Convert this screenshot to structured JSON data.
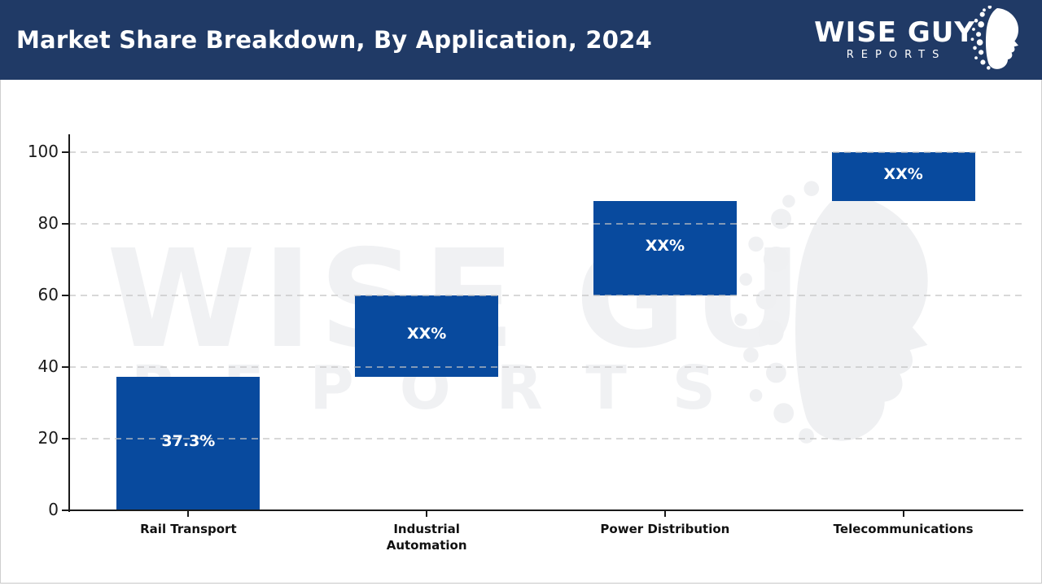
{
  "header": {
    "title": "Market Share Breakdown, By Application, 2024",
    "logo": {
      "line1": "WISE GUY",
      "line2": "REPORTS"
    }
  },
  "watermark": {
    "line1": "WISE GUY",
    "line2": "REPORTS"
  },
  "chart_data": {
    "type": "waterfall",
    "title": "Market Share Breakdown, By Application, 2024",
    "categories": [
      [
        "Rail Transport"
      ],
      [
        "Industrial",
        "Automation"
      ],
      [
        "Power Distribution"
      ],
      [
        "Telecommunications"
      ]
    ],
    "bars": [
      {
        "category": "Rail Transport",
        "start": 0,
        "end": 37.3,
        "value": 37.3,
        "label": "37.3%"
      },
      {
        "category": "Industrial Automation",
        "start": 37.3,
        "end": 60,
        "value": 22.7,
        "label": "XX%"
      },
      {
        "category": "Power Distribution",
        "start": 60,
        "end": 86.4,
        "value": 26.4,
        "label": "XX%"
      },
      {
        "category": "Telecommunications",
        "start": 86.4,
        "end": 100,
        "value": 13.6,
        "label": "XX%"
      }
    ],
    "xlabel": "",
    "ylabel": "",
    "ylim": [
      0,
      105
    ],
    "yticks": [
      0,
      20,
      40,
      60,
      80,
      100
    ],
    "grid": {
      "axis": "y",
      "style": "dashed",
      "color": "#d8d8d8"
    },
    "legend": false,
    "bar_color": "#084a9e",
    "value_label_color": "#ffffff",
    "axis_color": "#1a1a1a"
  }
}
